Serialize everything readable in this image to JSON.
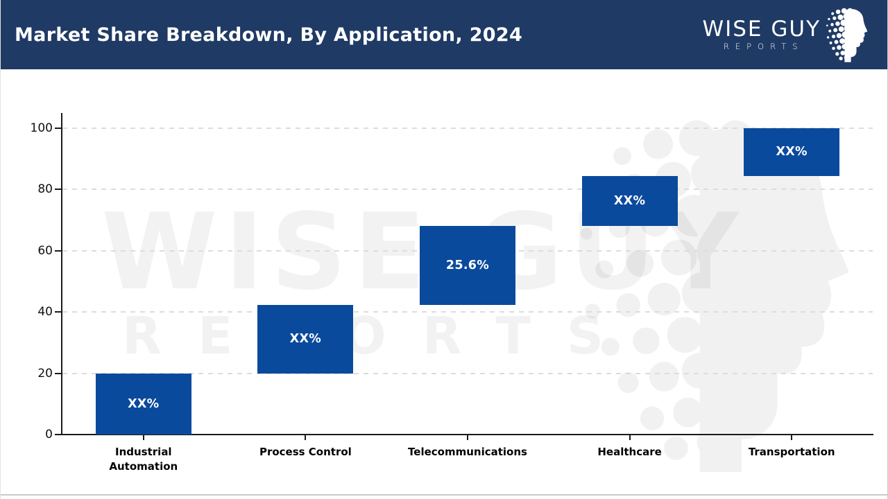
{
  "page": {
    "header": {
      "title": "Market Share Breakdown, By Application, 2024",
      "logo": {
        "line1": "WISE GUY",
        "line2": "REPORTS"
      }
    },
    "watermark": {
      "line1": "WISE GUY",
      "line2": "REPORTS"
    },
    "colors": {
      "header_bg": "#1f3a64",
      "bar": "#0a4a9c",
      "grid": "#dcdcdc",
      "axis": "#1a1a1a"
    }
  },
  "chart_data": {
    "type": "bar",
    "subtype": "floating-segment-waterfall",
    "title": "Market Share Breakdown, By Application, 2024",
    "categories": [
      "Industrial Automation",
      "Process Control",
      "Telecommunications",
      "Healthcare",
      "Transportation"
    ],
    "series": [
      {
        "name": "Market share (%)",
        "segments": [
          {
            "category": "Industrial Automation",
            "lines": [
              "Industrial",
              "Automation"
            ],
            "start": 0,
            "end": 20,
            "label": "XX%"
          },
          {
            "category": "Process Control",
            "lines": [
              "Process Control"
            ],
            "start": 20,
            "end": 42.4,
            "label": "XX%"
          },
          {
            "category": "Telecommunications",
            "lines": [
              "Telecommunications"
            ],
            "start": 42.4,
            "end": 68,
            "label": "25.6%"
          },
          {
            "category": "Healthcare",
            "lines": [
              "Healthcare"
            ],
            "start": 68,
            "end": 84.4,
            "label": "XX%"
          },
          {
            "category": "Transportation",
            "lines": [
              "Transportation"
            ],
            "start": 84.4,
            "end": 100,
            "label": "XX%"
          }
        ]
      }
    ],
    "xlabel": "",
    "ylabel": "",
    "ylim": [
      0,
      100
    ],
    "yticks": [
      0,
      20,
      40,
      60,
      80,
      100
    ],
    "grid": "horizontal-dashed",
    "legend": "none",
    "bar_color": "#0a4a9c",
    "bar_label_color": "#ffffff"
  }
}
